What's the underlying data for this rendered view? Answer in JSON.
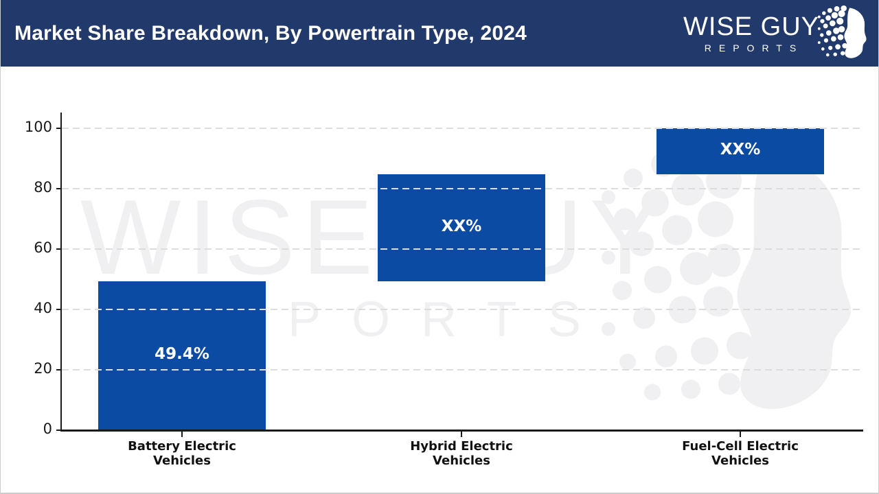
{
  "header": {
    "title": "Market Share Breakdown, By Powertrain Type, 2024",
    "logo": {
      "line1": "WISE GUY",
      "line2": "REPORTS"
    }
  },
  "watermark": {
    "line1": "WISE GUY",
    "line2": "REPORTS"
  },
  "colors": {
    "header_bg": "#21396b",
    "bar": "#0c4ba3",
    "bar_label": "#ffffff",
    "axis": "#1a1a1a",
    "tick_label": "#1a1a1a",
    "gridline": "#dcdcdc",
    "watermark": "#f0f0f2",
    "page_border": "#cccccc"
  },
  "chart_data": {
    "type": "bar",
    "subtype": "waterfall-stacked",
    "title": "Market Share Breakdown, By Powertrain Type, 2024",
    "categories": [
      "Battery Electric Vehicles",
      "Hybrid Electric Vehicles",
      "Fuel-Cell Electric Vehicles"
    ],
    "category_lines": [
      [
        "Battery Electric",
        "Vehicles"
      ],
      [
        "Hybrid Electric",
        "Vehicles"
      ],
      [
        "Fuel-Cell Electric",
        "Vehicles"
      ]
    ],
    "segments": [
      {
        "category": "Battery Electric Vehicles",
        "start": 0,
        "end": 49.4,
        "label": "49.4%"
      },
      {
        "category": "Hybrid Electric Vehicles",
        "start": 49.4,
        "end": 84.8,
        "label": "XX%"
      },
      {
        "category": "Fuel-Cell Electric Vehicles",
        "start": 84.8,
        "end": 100,
        "label": "XX%"
      }
    ],
    "ylim": [
      0,
      100
    ],
    "yticks": [
      0,
      20,
      40,
      60,
      80,
      100
    ],
    "ytick_labels": [
      "0",
      "20",
      "40",
      "60",
      "80",
      "100"
    ],
    "grid": "horizontal-dashed",
    "legend": "none"
  }
}
